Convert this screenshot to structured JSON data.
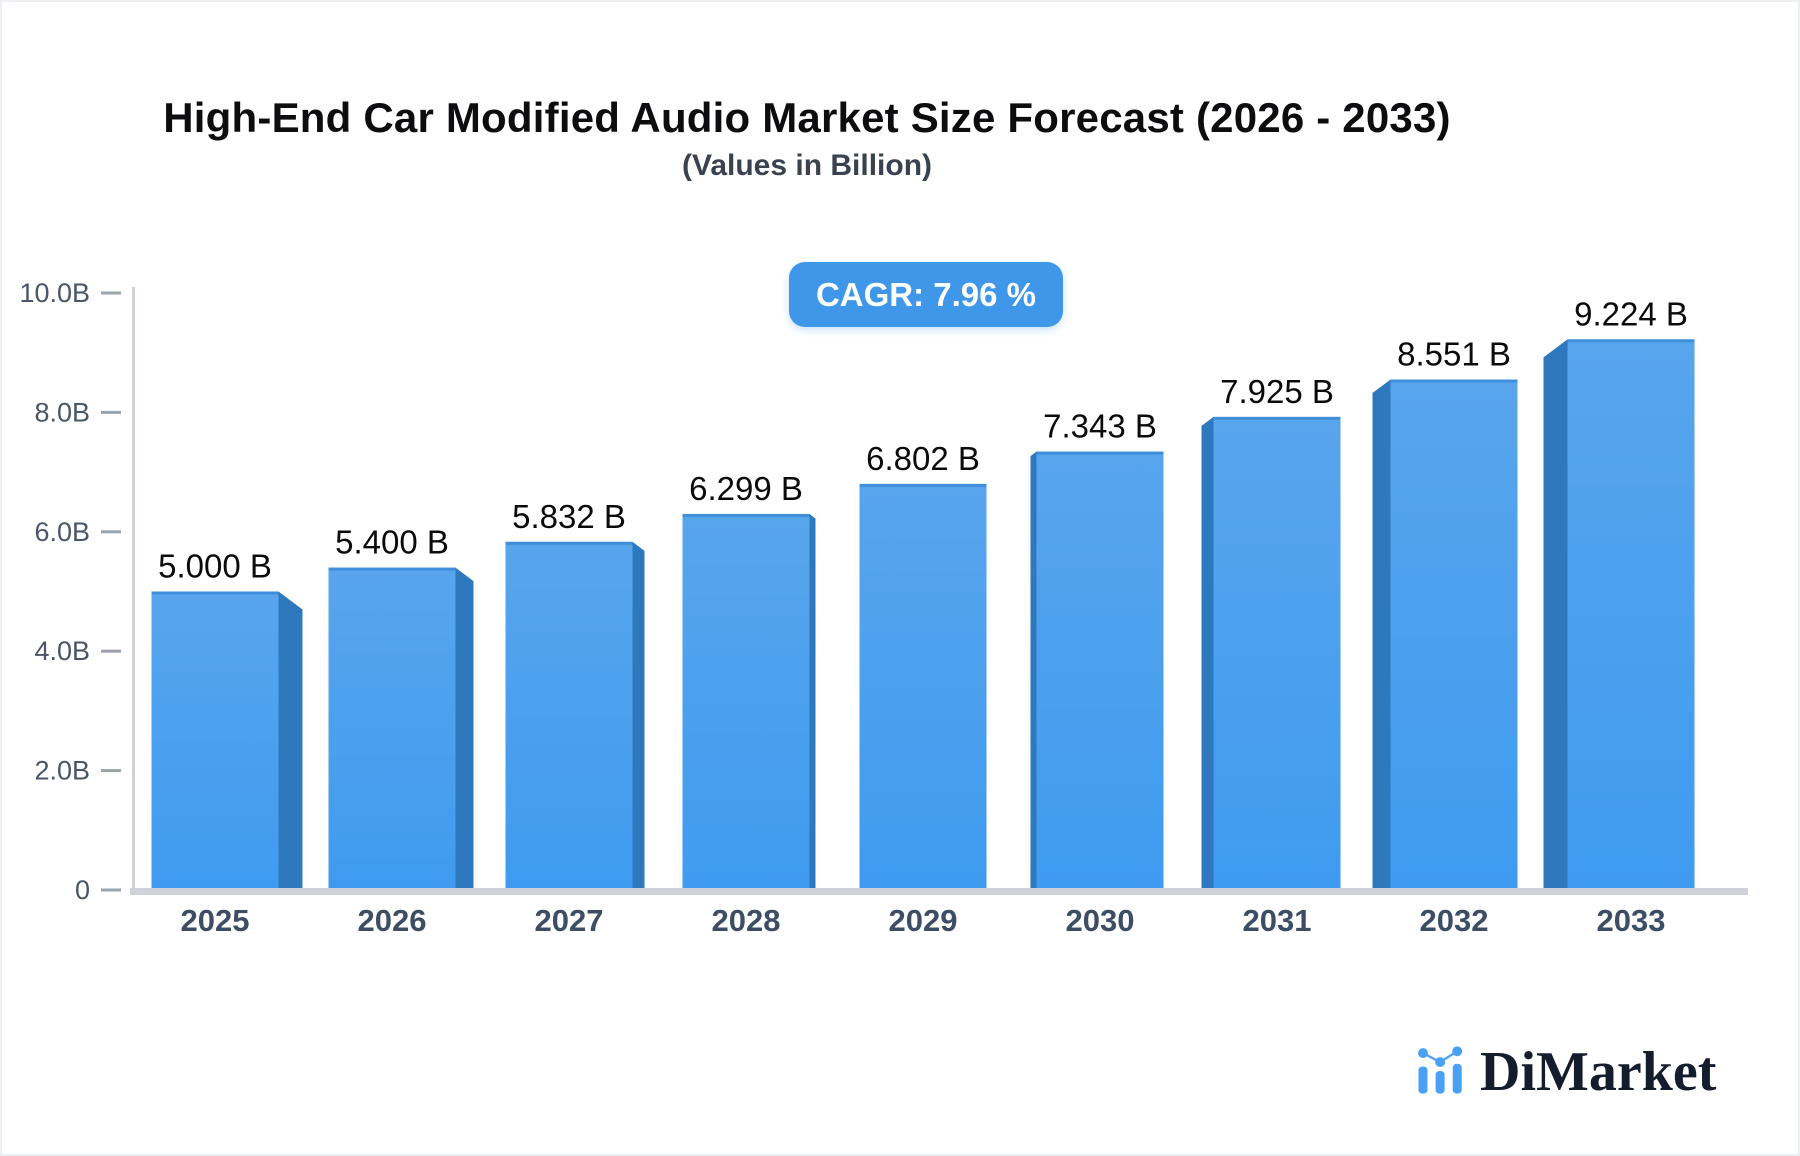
{
  "header": {
    "title": "High-End Car Modified Audio Market Size Forecast (2026 - 2033)",
    "subtitle": "(Values in Billion)"
  },
  "badge": {
    "label": "CAGR: 7.96 %",
    "bg_color": "#3f97ea",
    "text_color": "#ffffff"
  },
  "chart_data": {
    "type": "bar",
    "title": "High-End Car Modified Audio Market Size Forecast (2026 - 2033)",
    "subtitle": "(Values in Billion)",
    "categories": [
      "2025",
      "2026",
      "2027",
      "2028",
      "2029",
      "2030",
      "2031",
      "2032",
      "2033"
    ],
    "values": [
      5.0,
      5.4,
      5.832,
      6.299,
      6.802,
      7.343,
      7.925,
      8.551,
      9.224
    ],
    "value_labels": [
      "5.000 B",
      "5.400 B",
      "5.832 B",
      "6.299 B",
      "6.802 B",
      "7.343 B",
      "7.925 B",
      "8.551 B",
      "9.224 B"
    ],
    "xlabel": "",
    "ylabel": "",
    "ylim": [
      0,
      10
    ],
    "yticks": [
      {
        "value": 0,
        "label": "0"
      },
      {
        "value": 2,
        "label": "2.0B"
      },
      {
        "value": 4,
        "label": "4.0B"
      },
      {
        "value": 6,
        "label": "6.0B"
      },
      {
        "value": 8,
        "label": "8.0B"
      },
      {
        "value": 10,
        "label": "10.0B"
      }
    ],
    "grid": false,
    "legend": null,
    "bar_style": "3d-perspective-center",
    "colors": {
      "bar_front_top": "#58a5ec",
      "bar_front_bottom": "#3f9bf0",
      "bar_side": "#2e78bd",
      "bar_top_edge": "#3f8fda",
      "axis_line": "#cfd3d9",
      "tick_dash": "#9ba3ad",
      "tick_label": "#4a5568",
      "category_label": "#3d4d63",
      "value_label": "#0b0b0b"
    }
  },
  "logo": {
    "text": "DiMarket",
    "text_color": "#141d2e",
    "icon_color": "#4aa0f4",
    "icon_name": "bar-chart-logo-icon"
  }
}
